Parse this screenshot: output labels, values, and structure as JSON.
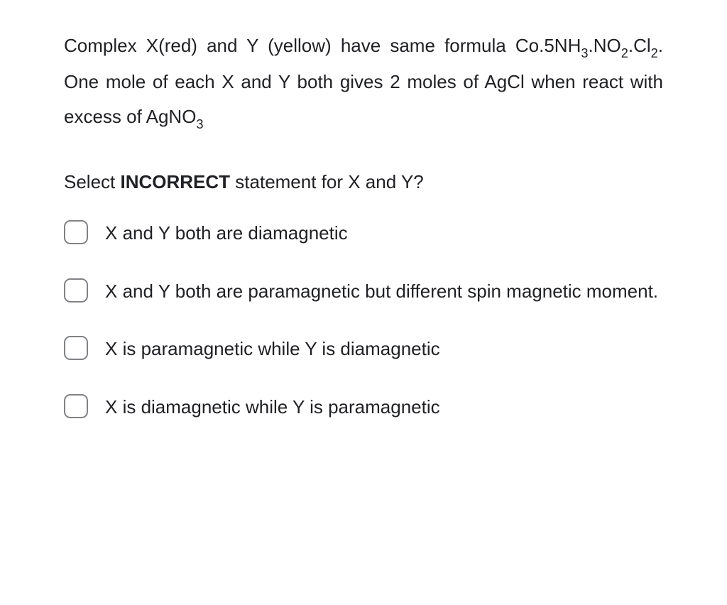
{
  "question": {
    "line1_prefix": "Complex X(red) and Y (yellow) have same formula",
    "formula_parts": {
      "p1": "Co.5NH",
      "sub1": "3",
      "p2": ".NO",
      "sub2": "2",
      "p3": ".Cl",
      "sub3": "2",
      "p4": ". One mole of each X and Y both gives"
    },
    "line3_prefix": "2 moles of AgCl when react with excess of AgNO",
    "line3_sub": "3"
  },
  "instruction": {
    "prefix": "Select ",
    "bold": "INCORRECT",
    "suffix": " statement for X and Y?"
  },
  "options": [
    {
      "text": "X and Y both are diamagnetic"
    },
    {
      "text": "X and Y both are paramagnetic but different spin magnetic moment."
    },
    {
      "text": "X is paramagnetic while Y is diamagnetic"
    },
    {
      "text": "X is diamagnetic while Y is paramagnetic"
    }
  ],
  "styles": {
    "text_color": "#202124",
    "checkbox_border_color": "#808285",
    "checkbox_border_radius": 9,
    "background_color": "#ffffff",
    "font_family": "Arial, Helvetica, sans-serif",
    "question_fontsize": 26,
    "option_fontsize": 26
  }
}
